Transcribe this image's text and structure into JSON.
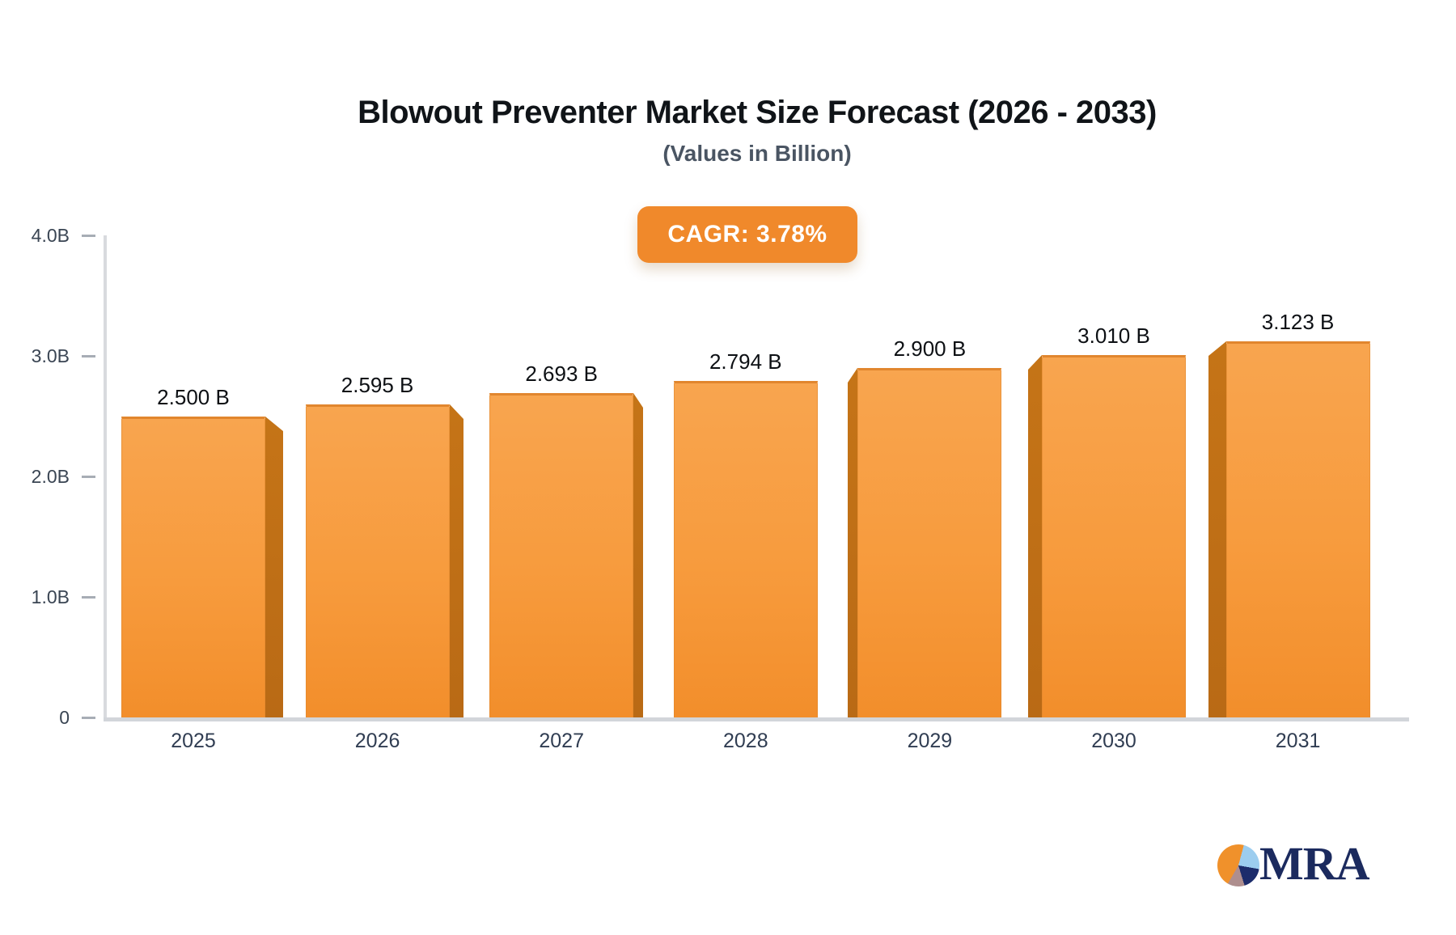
{
  "header": {
    "title": "Blowout Preventer Market Size Forecast (2026 - 2033)",
    "subtitle": "(Values in Billion)"
  },
  "badge": {
    "label": "CAGR: 3.78%"
  },
  "chart_data": {
    "type": "bar",
    "title": "Blowout Preventer Market Size Forecast (2026 - 2033)",
    "subtitle": "(Values in Billion)",
    "cagr_percent": 3.78,
    "categories": [
      "2025",
      "2026",
      "2027",
      "2028",
      "2029",
      "2030",
      "2031"
    ],
    "values": [
      2.5,
      2.595,
      2.693,
      2.794,
      2.9,
      3.01,
      3.123
    ],
    "bar_labels": [
      "2.500 B",
      "2.595 B",
      "2.693 B",
      "2.794 B",
      "2.900 B",
      "3.010 B",
      "3.123 B"
    ],
    "ylim": [
      0,
      4.0
    ],
    "y_ticks": [
      {
        "label": "0",
        "value": 0
      },
      {
        "label": "1.0B",
        "value": 1
      },
      {
        "label": "2.0B",
        "value": 2
      },
      {
        "label": "3.0B",
        "value": 3
      },
      {
        "label": "4.0B",
        "value": 4
      }
    ],
    "grid": false,
    "legend": null,
    "bar_color_top": "#F8A54F",
    "bar_color_bottom": "#F28E2B",
    "bar_side_color": "#C06F16"
  },
  "logo": {
    "text": "MRA"
  },
  "colors": {
    "accent_orange": "#F0892B",
    "axis_line": "#D8DADE",
    "tick": "#A7ADB5",
    "y_label": "#3A4553",
    "x_label": "#303D52",
    "value_label": "#0D1014",
    "title": "#101418",
    "subtitle": "#4A5563",
    "logo_navy": "#1B2A5E",
    "logo_light_blue": "#9CCDEF",
    "logo_gray": "#AE8E8E",
    "logo_orange": "#F0912B"
  }
}
